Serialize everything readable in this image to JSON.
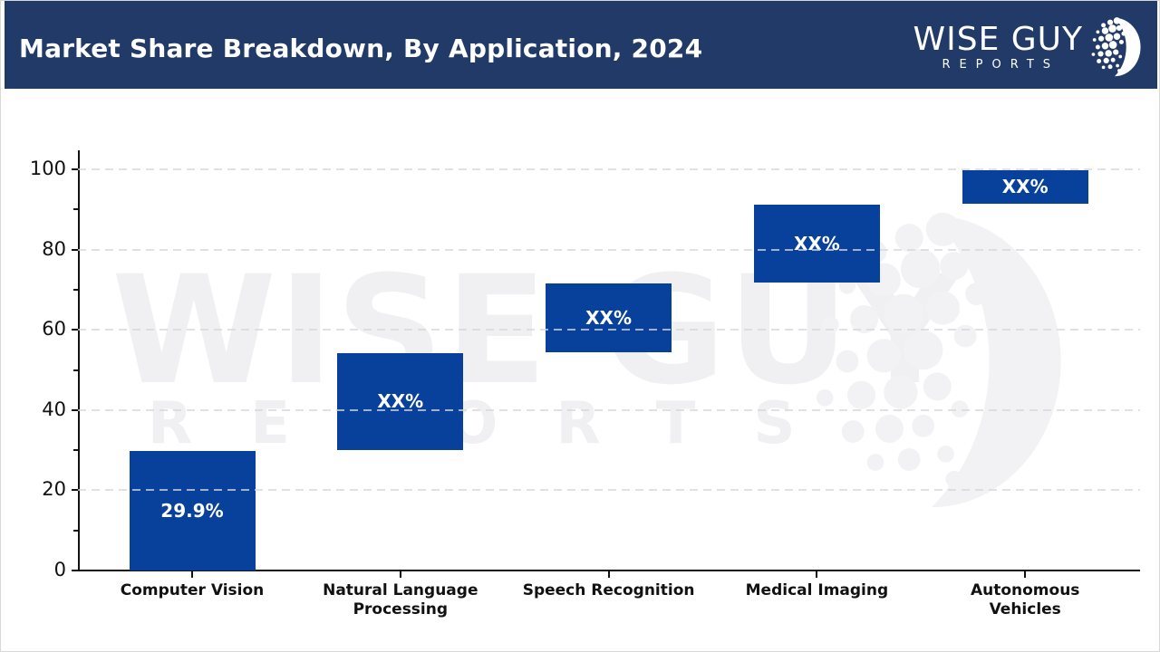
{
  "header": {
    "title": "Market Share Breakdown, By Application, 2024"
  },
  "logo": {
    "line1": "WISE GUY",
    "line2": "REPORTS"
  },
  "watermark": {
    "line1": "WISE GUY",
    "line2": "REPORTS"
  },
  "chart_data": {
    "type": "bar",
    "subtype": "waterfall",
    "title": "Market Share Breakdown, By Application, 2024",
    "categories": [
      "Computer Vision",
      "Natural Language\nProcessing",
      "Speech Recognition",
      "Medical Imaging",
      "Autonomous\nVehicles"
    ],
    "segments": [
      {
        "category": "Computer Vision",
        "start": 0,
        "end": 29.9,
        "label": "29.9%"
      },
      {
        "category": "Natural Language Processing",
        "start": 30.0,
        "end": 54.2,
        "label": "XX%"
      },
      {
        "category": "Speech Recognition",
        "start": 54.5,
        "end": 71.5,
        "label": "XX%"
      },
      {
        "category": "Medical Imaging",
        "start": 71.8,
        "end": 91.2,
        "label": "XX%"
      },
      {
        "category": "Autonomous Vehicles",
        "start": 91.5,
        "end": 99.8,
        "label": "XX%"
      }
    ],
    "xlabel": "",
    "ylabel": "",
    "ylim": [
      0,
      105
    ],
    "y_ticks": [
      0,
      20,
      40,
      60,
      80,
      100
    ],
    "grid": "horizontal-dashed",
    "legend": "none"
  },
  "colors": {
    "header_bg": "#213a68",
    "bar": "#07419c",
    "bar_label": "#ffffff",
    "grid": "#d7d7da",
    "axis": "#111111",
    "watermark": "#f0f0f3"
  }
}
